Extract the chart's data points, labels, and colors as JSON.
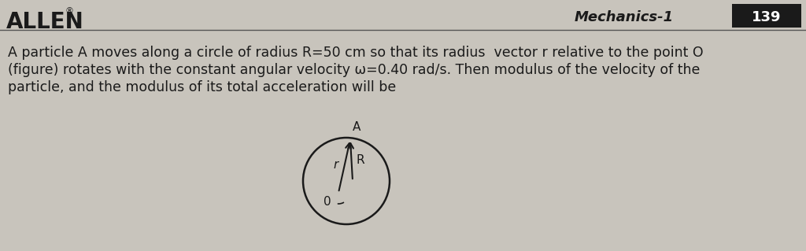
{
  "background_color": "#c8c4bc",
  "header_line_color": "#555555",
  "allen_text": "ALLEN",
  "allen_registered": "®",
  "allen_fontsize": 20,
  "mechanics_text": "Mechanics-1",
  "mechanics_fontsize": 13,
  "page_num": "139",
  "page_box_color": "#1a1a1a",
  "page_text_color": "#ffffff",
  "body_text_line1": "A particle A moves along a circle of radius R=50 cm so that its radius  vector r relative to the point O",
  "body_text_line2": "(figure) rotates with the constant angular velocity ω=0.40 rad/s. Then modulus of the velocity of the",
  "body_text_line3": "particle, and the modulus of its total acceleration will be",
  "body_fontsize": 12.5,
  "circle_color": "#1a1a1a",
  "circle_linewidth": 1.8,
  "diagram_label_A": "A",
  "diagram_label_R": "R",
  "diagram_label_r": "r",
  "diagram_label_O": "0"
}
